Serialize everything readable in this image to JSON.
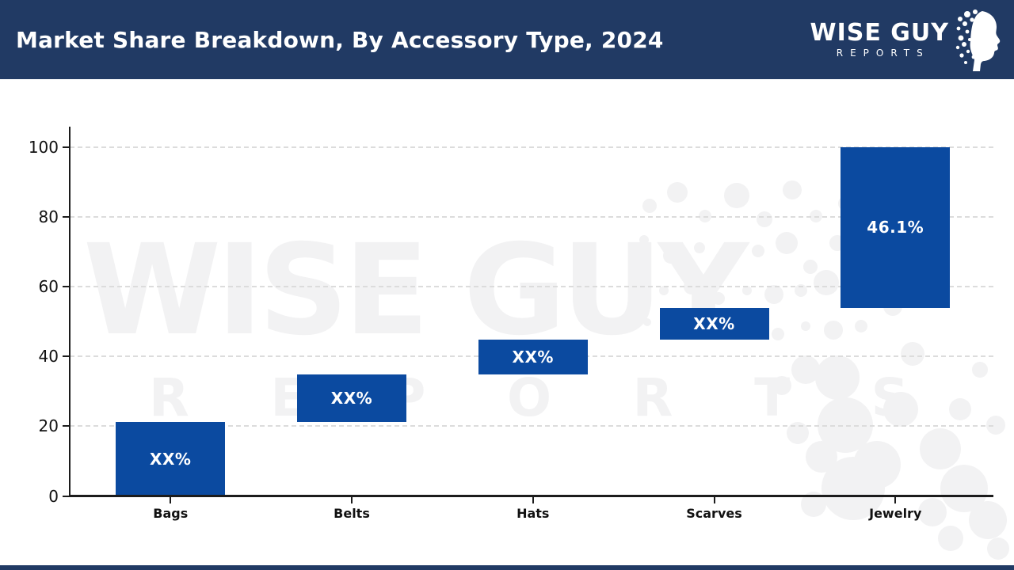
{
  "header": {
    "title": "Market Share Breakdown, By Accessory Type, 2024",
    "bg_color": "#213A64",
    "logo": {
      "line1": "WISE GUY",
      "line2": "REPORTS"
    }
  },
  "watermark": {
    "line1": "WISE GUY",
    "line2": "REPORTS",
    "color": "#F2F2F3"
  },
  "chart_data": {
    "type": "bar",
    "subtype": "waterfall",
    "title": "Market Share Breakdown, By Accessory Type, 2024",
    "categories": [
      "Bags",
      "Belts",
      "Hats",
      "Scarves",
      "Jewelry"
    ],
    "bars": [
      {
        "category": "Bags",
        "start": 0,
        "end": 21.1,
        "value": 21.1,
        "value_label": "XX%"
      },
      {
        "category": "Belts",
        "start": 21.1,
        "end": 34.7,
        "value": 13.6,
        "value_label": "XX%"
      },
      {
        "category": "Hats",
        "start": 34.7,
        "end": 44.7,
        "value": 10.0,
        "value_label": "XX%"
      },
      {
        "category": "Scarves",
        "start": 44.7,
        "end": 53.9,
        "value": 9.2,
        "value_label": "XX%"
      },
      {
        "category": "Jewelry",
        "start": 53.9,
        "end": 100,
        "value": 46.1,
        "value_label": "46.1%"
      }
    ],
    "yticks": [
      0,
      20,
      40,
      60,
      80,
      100
    ],
    "ylim": [
      0,
      105.5
    ],
    "xlabel": "",
    "ylabel": "",
    "grid": "horizontal-dashed",
    "legend": "none",
    "bar_color": "#0B4AA0",
    "label_position": "inside-center"
  },
  "footer": {
    "bg_color": "#213A64"
  }
}
